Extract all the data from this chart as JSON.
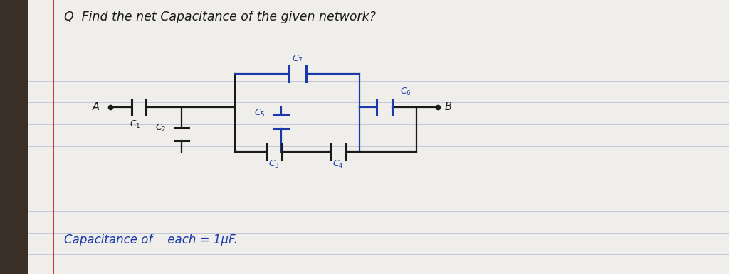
{
  "title": "Q  Find the net Capacitance of the given network?",
  "bottom": "Capacitance of    each = 1μF.",
  "lc": "#1a1a1a",
  "bc": "#1a3aaa",
  "bg": "#f0eeea",
  "margin_color": "#cc3333",
  "line_color_h": "#c0c8d8",
  "fig_w": 10.24,
  "fig_h": 3.86,
  "dpi": 100
}
